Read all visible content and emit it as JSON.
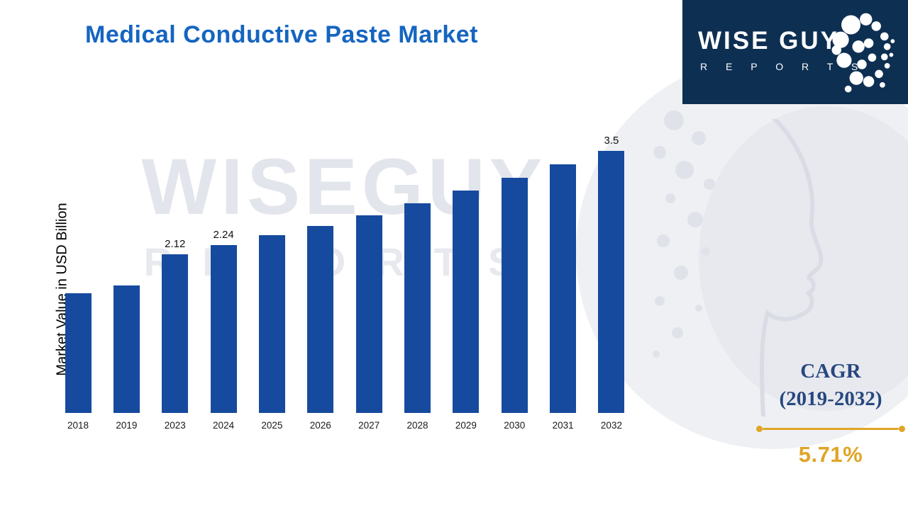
{
  "title": "Medical Conductive Paste Market",
  "logo": {
    "name": "WISE GUY",
    "sub": "R E P O R T S"
  },
  "watermark": {
    "line1": "WISEGUY",
    "line2": "REPORTS"
  },
  "cagr": {
    "line1": "CAGR",
    "line2": "(2019-2032)",
    "value": "5.71%"
  },
  "chart_data": {
    "type": "bar",
    "title": "Medical Conductive Paste Market",
    "categories": [
      "2018",
      "2019",
      "2023",
      "2024",
      "2025",
      "2026",
      "2027",
      "2028",
      "2029",
      "2030",
      "2031",
      "2032"
    ],
    "values": [
      1.6,
      1.7,
      2.12,
      2.24,
      2.37,
      2.5,
      2.64,
      2.8,
      2.97,
      3.14,
      3.32,
      3.5
    ],
    "bar_labels": [
      "",
      "",
      "2.12",
      "2.24",
      "",
      "",
      "",
      "",
      "",
      "",
      "",
      "3.5"
    ],
    "ylabel": "Market Value in USD Billion",
    "xlabel": "",
    "ylim": [
      0,
      4
    ],
    "grid": false,
    "legend": false,
    "bar_color": "#164a9e"
  },
  "colors": {
    "title_blue": "#1565c0",
    "bar_blue": "#164a9e",
    "navy": "#0d2f52",
    "cagr_blue": "#27477e",
    "gold": "#e0a526",
    "watermark_gray": "#e3e5ec"
  }
}
